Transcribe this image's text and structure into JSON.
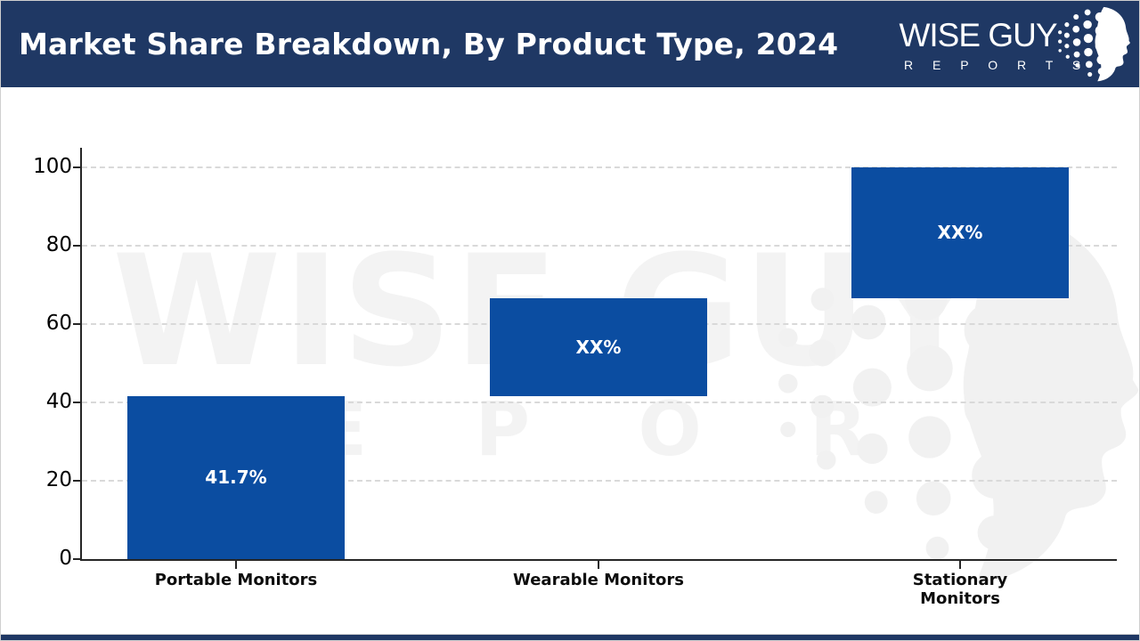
{
  "header": {
    "title": "Market Share Breakdown, By Product Type, 2024",
    "logo": {
      "line1": "WISE GUY",
      "line2": "R E P O R T S"
    }
  },
  "watermark": {
    "line1": "WISE GUY",
    "line2": "R E P O R T S"
  },
  "chart_data": {
    "type": "bar",
    "subtype": "floating-segment-waterfall",
    "title": "Market Share Breakdown, By Product Type, 2024",
    "categories": [
      "Portable Monitors",
      "Wearable Monitors",
      "Stationary\nMonitors"
    ],
    "segments": [
      {
        "category": "Portable Monitors",
        "start": 0,
        "end": 41.7,
        "value": 41.7,
        "label": "41.7%"
      },
      {
        "category": "Wearable Monitors",
        "start": 41.7,
        "end": 66.7,
        "value": 25.0,
        "label": "XX%"
      },
      {
        "category": "Stationary Monitors",
        "start": 66.7,
        "end": 100,
        "value": 33.3,
        "label": "XX%"
      }
    ],
    "xlabel": "",
    "ylabel": "",
    "yticks": [
      0,
      20,
      40,
      60,
      80,
      100
    ],
    "ylim": [
      0,
      105
    ],
    "grid": "horizontal-dashed",
    "legend": "none",
    "colors": {
      "bar": "#0b4da1",
      "bar_label": "#ffffff",
      "axis": "#262626",
      "gridline": "#d9d9d9",
      "header_bg": "#1f3864",
      "tick_text": "#000000",
      "watermark": "#f3f3f3"
    }
  }
}
